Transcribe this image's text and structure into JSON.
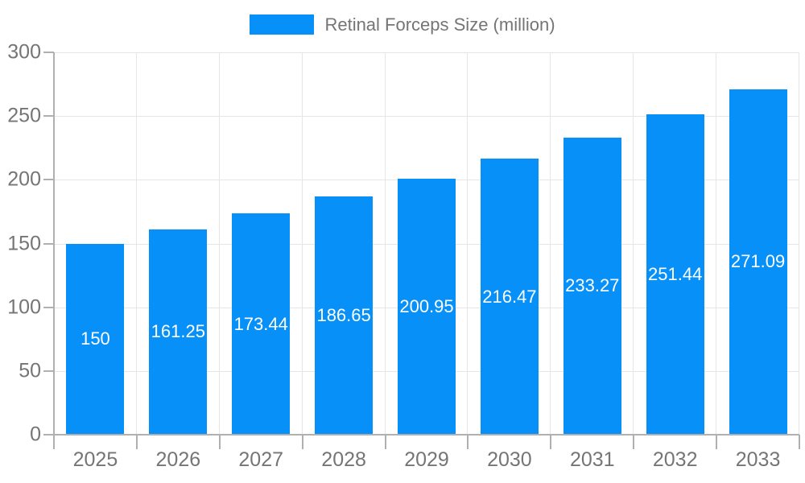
{
  "chart_data": {
    "type": "bar",
    "title": "Retinal Forceps Size (million)",
    "legend": {
      "position": "top",
      "label": "Retinal Forceps Size (million)"
    },
    "categories": [
      "2025",
      "2026",
      "2027",
      "2028",
      "2029",
      "2030",
      "2031",
      "2032",
      "2033"
    ],
    "series": [
      {
        "name": "Retinal Forceps Size (million)",
        "values": [
          150,
          161.25,
          173.44,
          186.65,
          200.95,
          216.47,
          233.27,
          251.44,
          271.09
        ]
      }
    ],
    "value_labels": [
      "150",
      "161.25",
      "173.44",
      "186.65",
      "200.95",
      "216.47",
      "233.27",
      "251.44",
      "271.09"
    ],
    "xlabel": "",
    "ylabel": "",
    "ylim": [
      0,
      300
    ],
    "ytick_interval": 50,
    "yticks": [
      "0",
      "50",
      "100",
      "150",
      "200",
      "250",
      "300"
    ],
    "grid": "on",
    "colors": {
      "bar": "#0690f8",
      "grid": "#e6e6e6",
      "axis": "#b0b0b0",
      "tick_text": "#757575",
      "legend_text": "#757575",
      "value_text": "#ffffff",
      "background": "#ffffff"
    }
  }
}
